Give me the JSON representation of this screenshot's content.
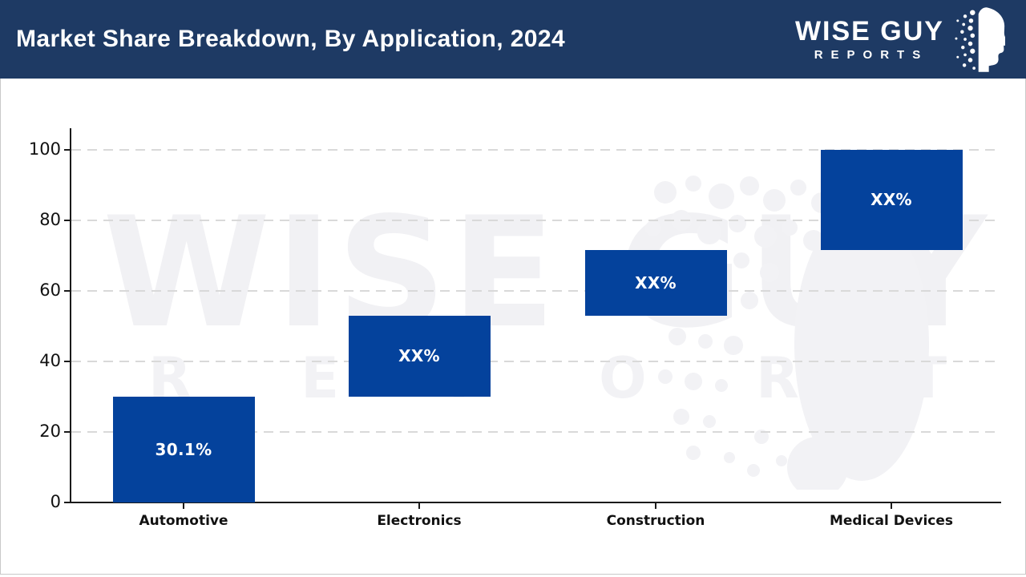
{
  "header": {
    "title": "Market Share Breakdown, By Application, 2024",
    "logo": {
      "wordmark": "WISE GUY",
      "subtext": "REPORTS",
      "face_icon": "dotted-head-profile-icon"
    }
  },
  "watermark": {
    "wordmark": "WISE GUY",
    "subtext": "R E P O R T S"
  },
  "colors": {
    "header_bg": "#1e3a64",
    "bar": "#04429c",
    "grid": "#d9d9d9",
    "axis": "#1a1a1a",
    "tick_text": "#111111",
    "bar_label": "#ffffff",
    "watermark": "#f1f1f4",
    "frame_border": "#c9c9c9"
  },
  "chart_data": {
    "type": "waterfall",
    "title": "Market Share Breakdown, By Application, 2024",
    "categories": [
      "Automotive",
      "Electronics",
      "Construction",
      "Medical Devices"
    ],
    "segments": [
      {
        "category": "Automotive",
        "start": 0,
        "end": 30.1,
        "label": "30.1%"
      },
      {
        "category": "Electronics",
        "start": 30.1,
        "end": 53.0,
        "label": "XX%"
      },
      {
        "category": "Construction",
        "start": 53.0,
        "end": 71.6,
        "label": "XX%"
      },
      {
        "category": "Medical Devices",
        "start": 71.6,
        "end": 100.0,
        "label": "XX%"
      }
    ],
    "xlabel": "",
    "ylabel": "",
    "ylim": [
      0,
      100
    ],
    "yticks": [
      0,
      20,
      40,
      60,
      80,
      100
    ],
    "grid": "horizontal-dashed",
    "legend": "none",
    "bar_color": "#04429c"
  }
}
